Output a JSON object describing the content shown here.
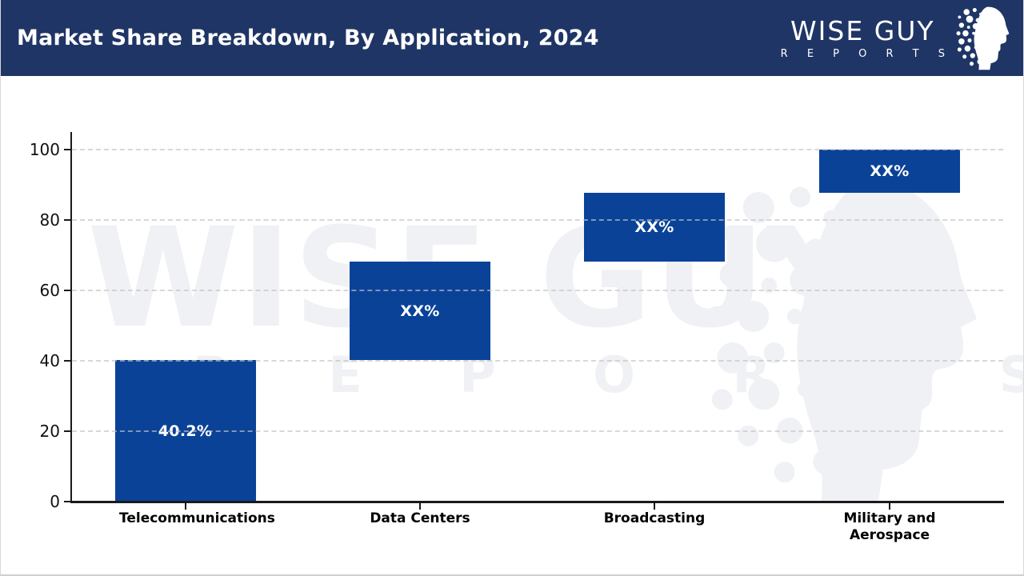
{
  "header": {
    "title": "Market Share Breakdown, By Application, 2024",
    "logo": {
      "name_line": "WISE GUY",
      "sub_line": "R E P O R T S",
      "face_icon": "dotted-head-profile"
    }
  },
  "watermark": {
    "name_line": "WISE GUY",
    "sub_line": "R E P O R T S",
    "face_icon": "dotted-head-profile"
  },
  "colors": {
    "header_bg": "#1f3565",
    "bar_blue": "#0a4298",
    "axis": "#1a1a1a",
    "gridline": "#c3c3c3",
    "watermark_gray": "#f0f1f5",
    "bar_label_text": "#ffffff",
    "tick_label_text": "#111111"
  },
  "chart_data": {
    "type": "bar",
    "subtype": "floating-segment-waterfall",
    "title": "Market Share Breakdown, By Application, 2024",
    "categories": [
      "Telecommunications",
      "Data Centers",
      "Broadcasting",
      "Military and Aerospace"
    ],
    "segments": [
      {
        "category": "Telecommunications",
        "start": 0,
        "end": 40.2,
        "label": "40.2%"
      },
      {
        "category": "Data Centers",
        "start": 40.2,
        "end": 68.2,
        "label": "XX%"
      },
      {
        "category": "Broadcasting",
        "start": 68.2,
        "end": 87.7,
        "label": "XX%"
      },
      {
        "category": "Military and Aerospace",
        "start": 87.7,
        "end": 100,
        "label": "XX%"
      }
    ],
    "ylim": [
      0,
      100
    ],
    "yticks": [
      0,
      20,
      40,
      60,
      80,
      100
    ],
    "grid": "horizontal-dashed",
    "grid_above_bars": true,
    "legend": "none",
    "bar_color": "#0a4298",
    "value_label_color": "#ffffff"
  }
}
